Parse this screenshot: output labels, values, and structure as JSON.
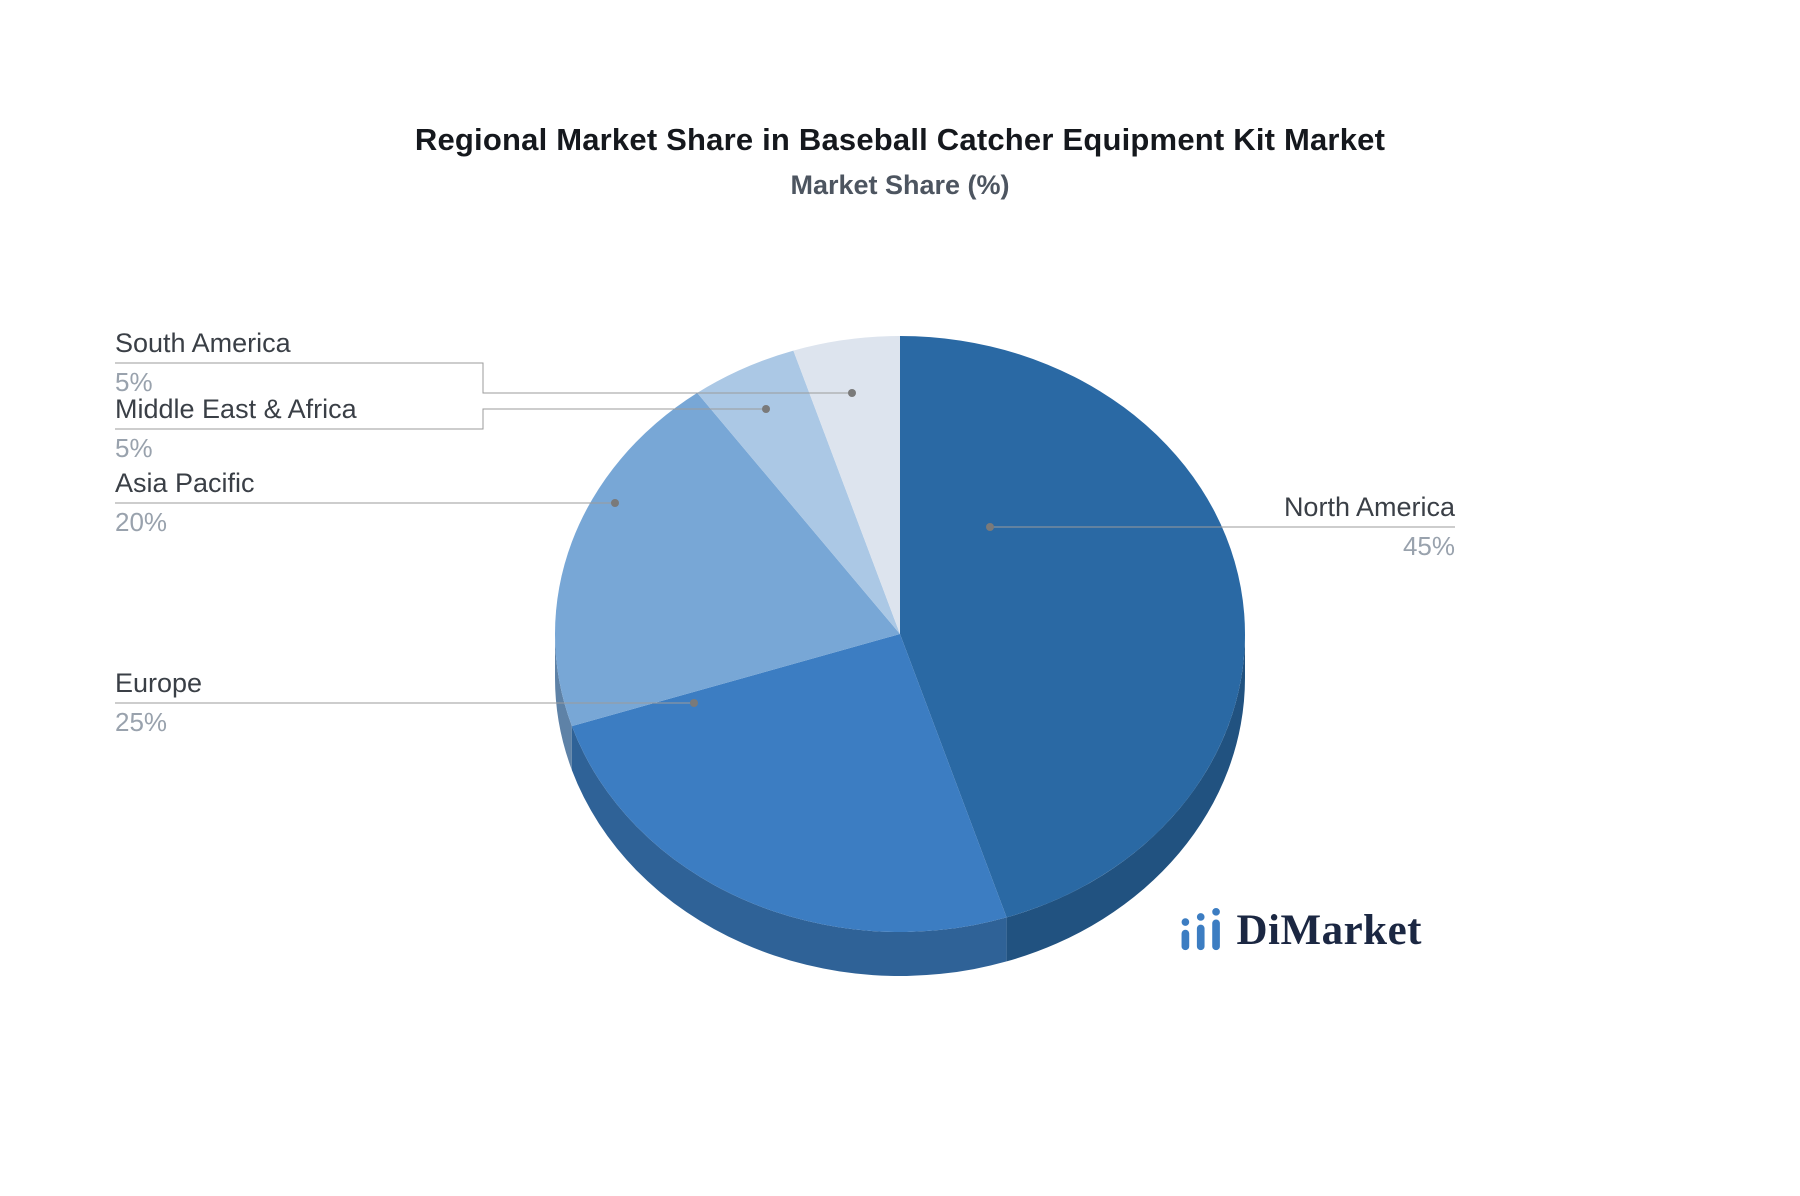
{
  "page": {
    "background": "#ffffff"
  },
  "chart_data": {
    "type": "pie",
    "title": "Regional Market Share in Baseball Catcher Equipment Kit Market",
    "subtitle": "Market Share (%)",
    "unit": "%",
    "style": "3d",
    "direction": "clockwise",
    "start_angle_deg": 0,
    "legend_position": "none",
    "categories": [
      "North America",
      "Europe",
      "Asia Pacific",
      "Middle East & Africa",
      "South America"
    ],
    "values": [
      45,
      25,
      20,
      5,
      5
    ],
    "colors": [
      "#2a69a4",
      "#3c7dc2",
      "#78a7d6",
      "#abc8e5",
      "#dde4ee"
    ],
    "label_name_color": "#3a3f46",
    "label_value_color": "#99a2ad",
    "leader_line_color": "#9b9b9b",
    "leader_dot_color": "#7a7a7a"
  },
  "branding": {
    "logo_text": "DiMarket",
    "logo_text_color": "#1b2742",
    "logo_icon": "bar-chart-icon",
    "logo_icon_color": "#3c7dc2"
  }
}
